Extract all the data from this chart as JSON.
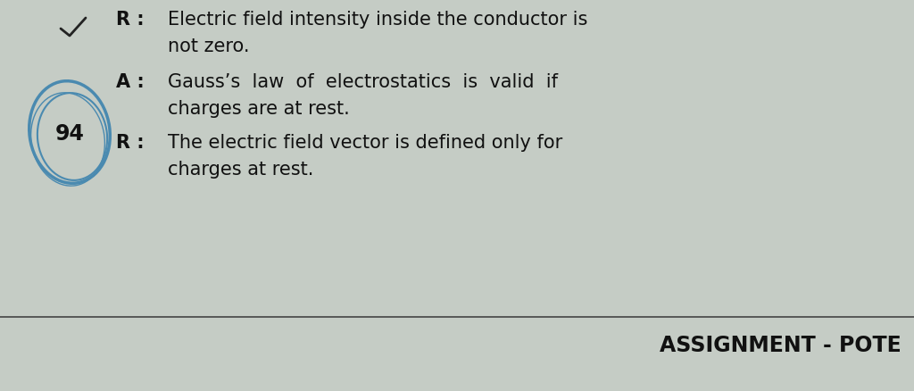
{
  "background_color": "#c5ccc5",
  "main_fontsize": 15.0,
  "footer_fontsize": 17,
  "text_color": "#111111",
  "line_color": "#444444",
  "circle_color": "#4a8ab0",
  "check_color": "#222222",
  "line1_R": "R :",
  "line1_a": "Electric field intensity inside the conductor is",
  "line1_b": "not zero.",
  "line2_num": "94",
  "line2_A": "A :",
  "line2_a": "Gauss’s  law  of  electrostatics  is  valid  if",
  "line2_b": "charges are at rest.",
  "line3_R": "R :",
  "line3_a": "The electric field vector is defined only for",
  "line3_b": "charges at rest.",
  "footer_text": "Assignment - Pote"
}
